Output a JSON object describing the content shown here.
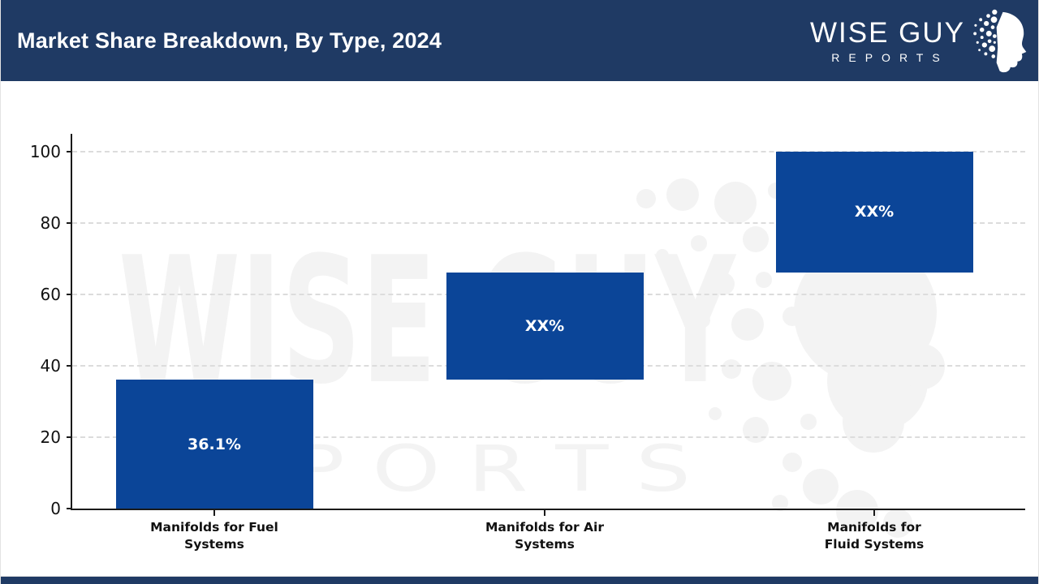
{
  "header": {
    "title": "Market Share Breakdown, By Type, 2024",
    "logo": {
      "line1": "WISE GUY",
      "line2": "REPORTS"
    }
  },
  "watermark": {
    "line1": "WISE GUY",
    "line2": "R E P O R T S"
  },
  "colors": {
    "header_bg": "#1f3a64",
    "footer_bg": "#1f3a64",
    "bar": "#0b4598",
    "grid": "#dcdcdc",
    "axis": "#1a1a1a",
    "value_label": "#ffffff",
    "watermark": "#f3f3f3"
  },
  "chart_data": {
    "type": "bar",
    "subtype": "waterfall",
    "title": "Market Share Breakdown, By Type, 2024",
    "categories": [
      "Manifolds for Fuel\nSystems",
      "Manifolds for Air\nSystems",
      "Manifolds for\nFluid Systems"
    ],
    "segments": [
      {
        "category": "Manifolds for Fuel Systems",
        "label": "36.1%",
        "start": 0,
        "end": 36.1
      },
      {
        "category": "Manifolds for Air Systems",
        "label": "XX%",
        "start": 36.1,
        "end": 66.2
      },
      {
        "category": "Manifolds for Fluid Systems",
        "label": "XX%",
        "start": 66.2,
        "end": 100
      }
    ],
    "yticks": [
      0,
      20,
      40,
      60,
      80,
      100
    ],
    "ylim": [
      0,
      105
    ],
    "xlabel": "",
    "ylabel": "",
    "grid": "horizontal-dashed",
    "legend": "none"
  }
}
